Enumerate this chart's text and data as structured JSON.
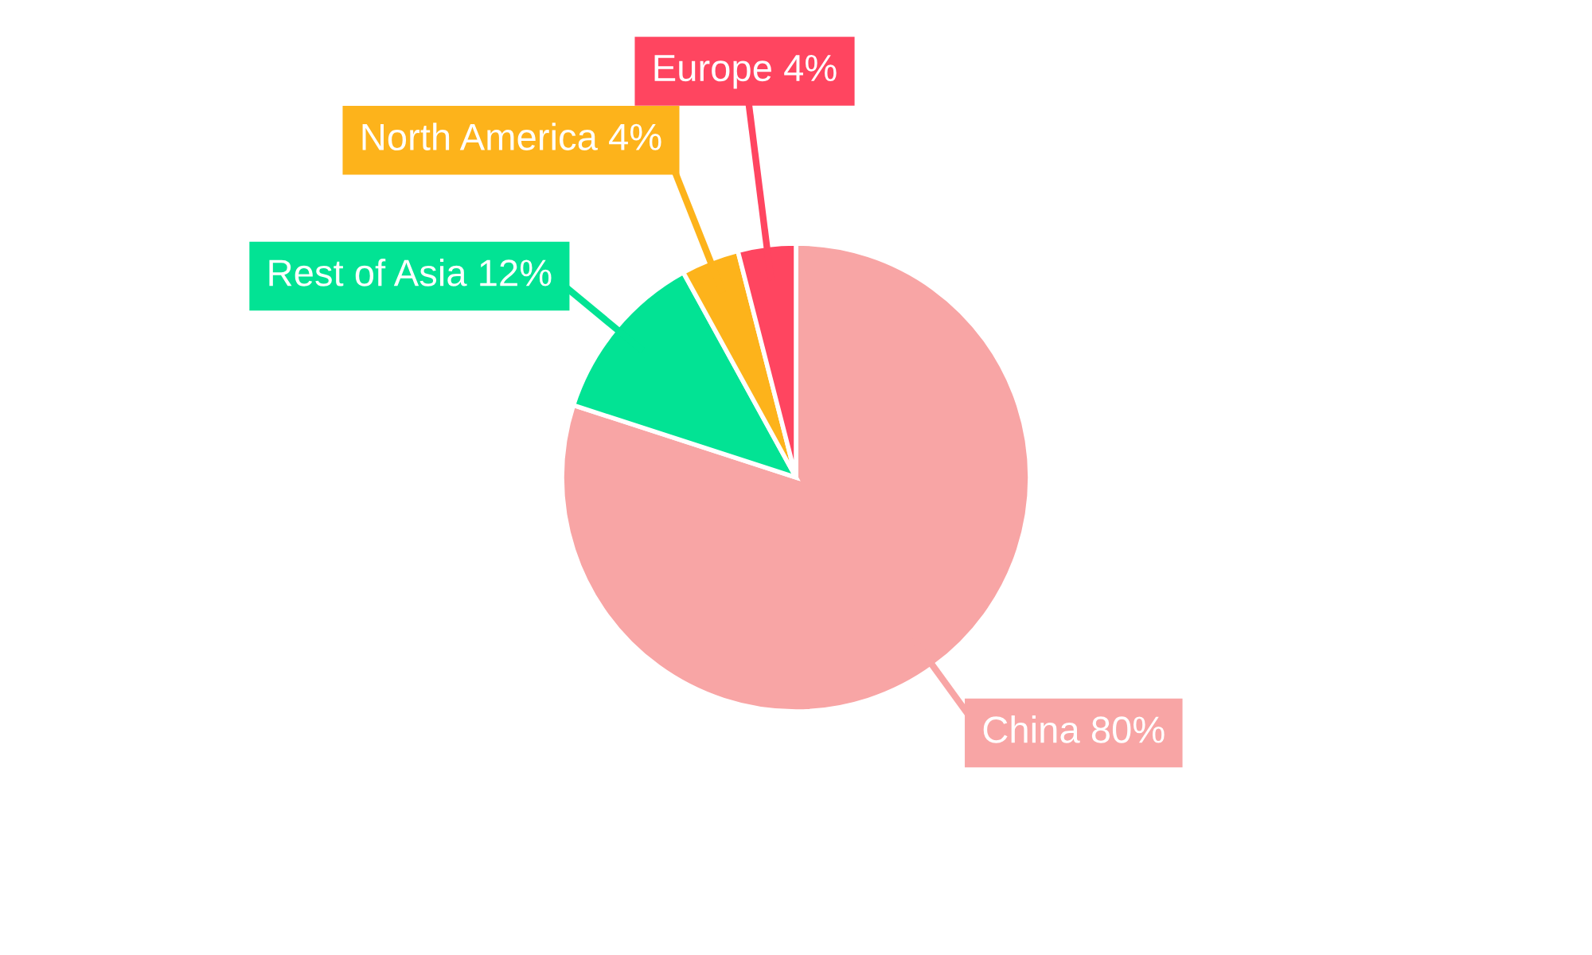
{
  "chart_data": {
    "type": "pie",
    "categories": [
      "China",
      "Rest of Asia",
      "North America",
      "Europe"
    ],
    "values": [
      80,
      12,
      4,
      4
    ],
    "value_labels": [
      "80%",
      "12%",
      "4%",
      "4%"
    ],
    "colors": [
      "#f8a5a5",
      "#02e394",
      "#fdb31b",
      "#ff4560"
    ]
  }
}
